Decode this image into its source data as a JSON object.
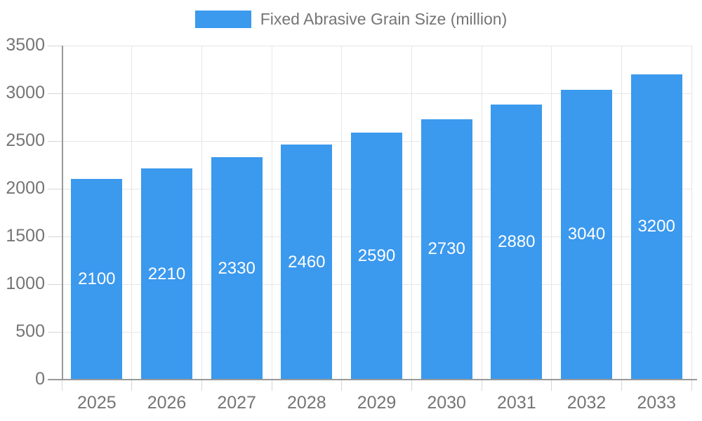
{
  "legend": {
    "label": "Fixed Abrasive Grain Size (million)"
  },
  "colors": {
    "bar": "#3b99ee",
    "bar_label": "#ffffff",
    "axis": "#999999",
    "grid": "#e6e6e6",
    "tick": "#d6d6d6",
    "text": "#757575"
  },
  "chart_data": {
    "type": "bar",
    "title": "",
    "legend_label": "Fixed Abrasive Grain Size (million)",
    "categories": [
      "2025",
      "2026",
      "2027",
      "2028",
      "2029",
      "2030",
      "2031",
      "2032",
      "2033"
    ],
    "values": [
      2100,
      2210,
      2330,
      2460,
      2590,
      2730,
      2880,
      3040,
      3200
    ],
    "xlabel": "",
    "ylabel": "",
    "ylim": [
      0,
      3500
    ],
    "yticks": [
      0,
      500,
      1000,
      1500,
      2000,
      2500,
      3000,
      3500
    ],
    "grid": true,
    "legend_position": "top",
    "bar_labels_shown": true,
    "bar_label_position": "center"
  }
}
